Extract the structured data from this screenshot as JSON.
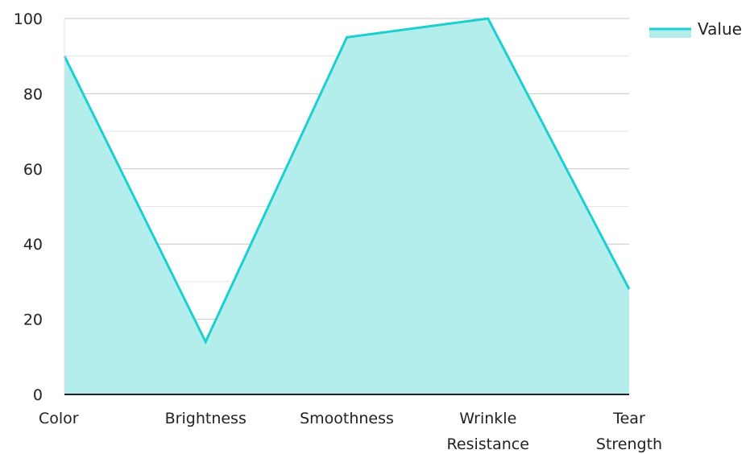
{
  "chart_data": {
    "type": "area",
    "categories": [
      "Color",
      "Brightness",
      "Smoothness",
      "Wrinkle Resistance",
      "Tear Strength"
    ],
    "series": [
      {
        "name": "Value",
        "values": [
          90,
          14,
          95,
          100,
          28
        ]
      }
    ],
    "ylim": [
      0,
      100
    ],
    "y_ticks": [
      0,
      20,
      40,
      60,
      80,
      100
    ],
    "grid": true,
    "legend": "top-right",
    "colors": {
      "line": "#1ccfd0",
      "fill": "#b3eeed",
      "grid_major": "#c8c8c8",
      "grid_minor": "#e4e4e4",
      "axis": "#222222"
    }
  }
}
